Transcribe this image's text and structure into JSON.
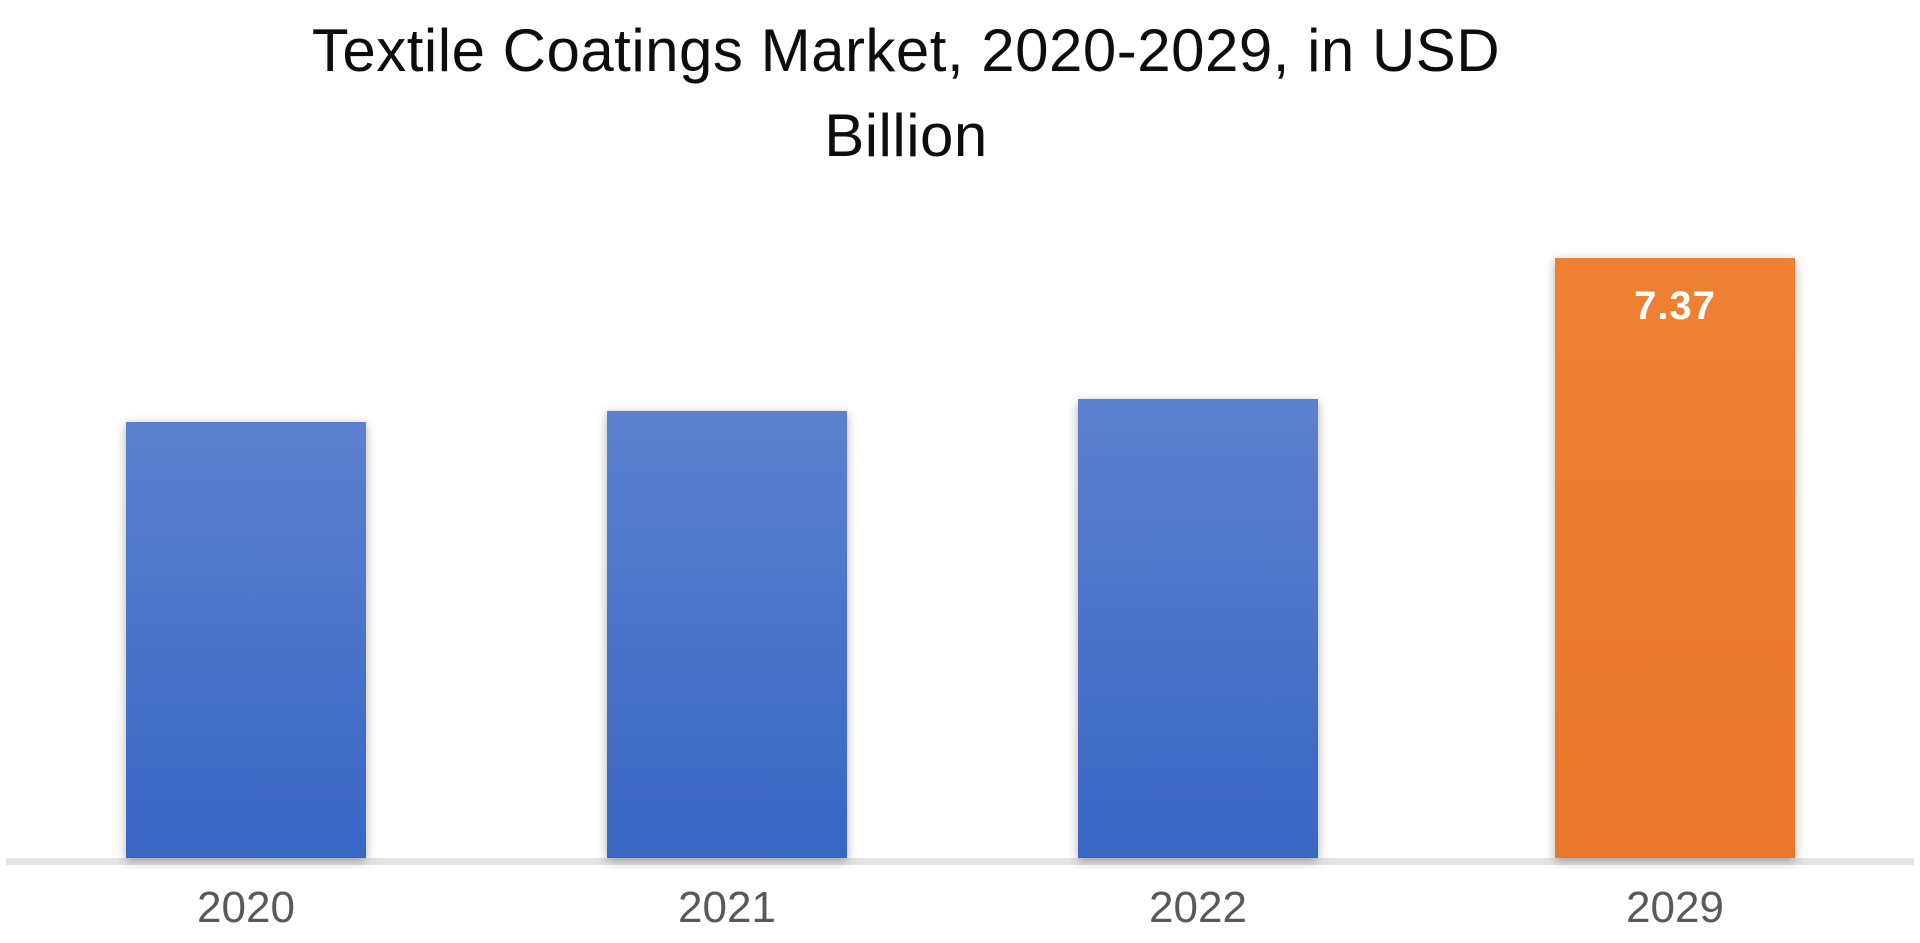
{
  "header": {
    "title_line1": "Textile Coatings Market, 2020-2029, in USD",
    "title_line2": "Billion"
  },
  "chart_data": {
    "type": "bar",
    "title": "Textile Coatings Market, 2020-2029, in USD Billion",
    "unit": "USD Billion",
    "categories": [
      "2020",
      "2021",
      "2022",
      "2029"
    ],
    "values": [
      5.36,
      5.49,
      5.64,
      7.37
    ],
    "data_labels": [
      null,
      null,
      null,
      "7.37"
    ],
    "highlight_index": 3,
    "xlabel": "",
    "ylabel": "",
    "ylim": [
      0,
      8
    ],
    "grid": false,
    "legend": false,
    "colors": {
      "bar_blue_top": "#5C81CF",
      "bar_blue_bottom": "#3866C3",
      "bar_orange_top": "#EE8134",
      "bar_orange_bottom": "#E9772B",
      "axis_line": "#E3E3E3",
      "tick_label": "#595959",
      "data_label": "#FFFFFF",
      "title_text": "#0D0D0D"
    }
  }
}
